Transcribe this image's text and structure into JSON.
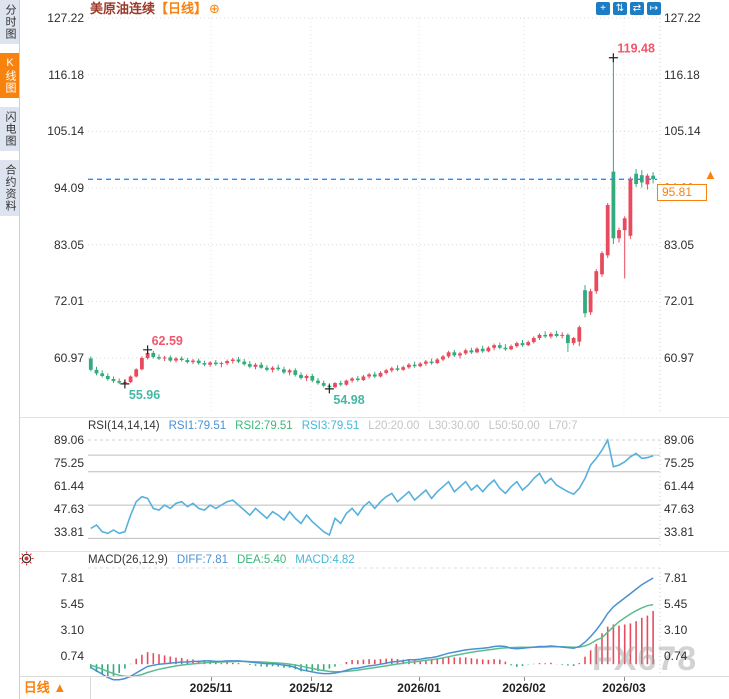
{
  "colors": {
    "accent_orange": "#f7820d",
    "up_red": "#e74c5e",
    "down_green": "#33ab7c",
    "label_red": "#f2566b",
    "label_green": "#45b8a4",
    "rsi_line": "#57b0dc",
    "dif_blue": "#4a90d2",
    "dea_green": "#5bbd8e",
    "macd_cyan": "#45b8d8",
    "level_gray": "#c5c5c5",
    "toolbar_blue": "#1d7dc4",
    "title_red": "#9c3a2a",
    "current_line_blue": "#1e90ff"
  },
  "sidebar": {
    "tabs": [
      {
        "label": "分时图",
        "active": false
      },
      {
        "label": "K线图",
        "active": true
      },
      {
        "label": "闪电图",
        "active": false
      },
      {
        "label": "合约资料",
        "active": false
      }
    ]
  },
  "header": {
    "symbol": "美原油连续",
    "period": "【日线】",
    "add_icon": "⊕"
  },
  "toolbar": {
    "icons": [
      {
        "name": "crosshair-icon",
        "glyph": "+"
      },
      {
        "name": "fit-vertical-icon",
        "glyph": "⇅"
      },
      {
        "name": "scale-axis-icon",
        "glyph": "⇄"
      },
      {
        "name": "pop-out-icon",
        "glyph": "↦"
      }
    ]
  },
  "price_marker": {
    "value": "95.81",
    "arrow": "▲"
  },
  "bottom_bar": {
    "period_button": "日线",
    "period_arrow": "▲",
    "months": [
      "2025/11",
      "2025/12",
      "2026/01",
      "2026/02",
      "2026/03"
    ]
  },
  "watermark": "FX678",
  "rsi_header": {
    "segments": [
      {
        "text": "RSI(14,14,14)",
        "color": "#333333"
      },
      {
        "text": "RSI1:79.51",
        "color": "#4a90d2"
      },
      {
        "text": "RSI2:79.51",
        "color": "#3cb77b"
      },
      {
        "text": "RSI3:79.51",
        "color": "#45b8d8"
      },
      {
        "text": "L20:20.00",
        "color": "#c5c5c5"
      },
      {
        "text": "L30:30.00",
        "color": "#c5c5c5"
      },
      {
        "text": "L50:50.00",
        "color": "#c5c5c5"
      },
      {
        "text": "L70:7",
        "color": "#c5c5c5"
      }
    ]
  },
  "macd_header": {
    "segments": [
      {
        "text": "MACD(26,12,9)",
        "color": "#333333"
      },
      {
        "text": "DIFF:7.81",
        "color": "#4a90d2"
      },
      {
        "text": "DEA:5.40",
        "color": "#3cb77b"
      },
      {
        "text": "MACD:4.82",
        "color": "#45b8d8"
      }
    ]
  },
  "annotations": [
    {
      "text": "119.48",
      "index": 92,
      "at": "high",
      "color_key": "label_red"
    },
    {
      "text": "62.59",
      "index": 10,
      "at": "high",
      "color_key": "label_red"
    },
    {
      "text": "55.96",
      "index": 6,
      "at": "low",
      "color_key": "label_green"
    },
    {
      "text": "54.98",
      "index": 42,
      "at": "low",
      "color_key": "label_green"
    }
  ],
  "chart_data": [
    {
      "type": "candlestick",
      "title": "美原油连续 日线",
      "ylim": [
        50.5,
        127.22
      ],
      "yticks": [
        "127.22",
        "116.18",
        "105.14",
        "94.09",
        "83.05",
        "72.01",
        "60.97"
      ],
      "current_price": 95.81,
      "high_marker": 119.48,
      "low_marker": 54.98,
      "candles": [
        [
          60.9,
          61.3,
          58.4,
          58.7
        ],
        [
          58.7,
          59.3,
          57.6,
          58.0
        ],
        [
          58.0,
          58.6,
          57.2,
          57.5
        ],
        [
          57.5,
          58.0,
          56.6,
          56.9
        ],
        [
          56.9,
          57.4,
          56.1,
          56.5
        ],
        [
          56.5,
          57.0,
          55.9,
          56.2
        ],
        [
          56.2,
          56.6,
          55.96,
          56.3
        ],
        [
          56.3,
          57.6,
          56.1,
          57.4
        ],
        [
          57.4,
          59.0,
          57.2,
          58.8
        ],
        [
          58.8,
          61.3,
          58.6,
          61.0
        ],
        [
          61.0,
          62.59,
          60.7,
          62.0
        ],
        [
          62.0,
          62.4,
          60.9,
          61.2
        ],
        [
          61.2,
          61.7,
          60.6,
          60.9
        ],
        [
          60.9,
          61.4,
          60.4,
          61.1
        ],
        [
          61.1,
          61.5,
          60.2,
          60.5
        ],
        [
          60.5,
          61.2,
          60.1,
          60.9
        ],
        [
          60.9,
          61.3,
          60.3,
          60.6
        ],
        [
          60.6,
          61.0,
          59.9,
          60.2
        ],
        [
          60.2,
          60.8,
          59.8,
          60.5
        ],
        [
          60.5,
          60.9,
          59.7,
          60.0
        ],
        [
          60.0,
          60.5,
          59.4,
          59.7
        ],
        [
          59.7,
          60.4,
          59.3,
          60.1
        ],
        [
          60.1,
          60.6,
          59.5,
          59.8
        ],
        [
          59.8,
          60.3,
          59.2,
          60.0
        ],
        [
          60.0,
          60.7,
          59.6,
          60.4
        ],
        [
          60.4,
          61.0,
          59.9,
          60.7
        ],
        [
          60.7,
          61.2,
          60.0,
          60.3
        ],
        [
          60.3,
          60.8,
          59.5,
          59.8
        ],
        [
          59.8,
          60.4,
          59.0,
          59.3
        ],
        [
          59.3,
          60.0,
          58.8,
          59.7
        ],
        [
          59.7,
          60.2,
          58.9,
          59.1
        ],
        [
          59.1,
          59.6,
          58.4,
          58.7
        ],
        [
          58.7,
          59.4,
          58.2,
          59.1
        ],
        [
          59.1,
          59.7,
          58.5,
          58.8
        ],
        [
          58.8,
          59.3,
          57.9,
          58.2
        ],
        [
          58.2,
          58.9,
          57.6,
          58.6
        ],
        [
          58.6,
          59.0,
          57.4,
          57.7
        ],
        [
          57.7,
          58.2,
          56.8,
          57.1
        ],
        [
          57.1,
          57.8,
          56.5,
          57.5
        ],
        [
          57.5,
          57.9,
          56.3,
          56.6
        ],
        [
          56.6,
          57.1,
          55.8,
          56.1
        ],
        [
          56.1,
          56.6,
          55.3,
          55.6
        ],
        [
          55.6,
          56.1,
          54.98,
          55.3
        ],
        [
          55.3,
          56.3,
          55.1,
          56.1
        ],
        [
          56.1,
          56.6,
          55.5,
          55.8
        ],
        [
          55.8,
          56.8,
          55.6,
          56.6
        ],
        [
          56.6,
          57.3,
          56.2,
          57.0
        ],
        [
          57.0,
          57.5,
          56.4,
          56.7
        ],
        [
          56.7,
          57.7,
          56.5,
          57.4
        ],
        [
          57.4,
          58.1,
          57.0,
          57.8
        ],
        [
          57.8,
          58.3,
          57.1,
          57.4
        ],
        [
          57.4,
          58.4,
          57.2,
          58.1
        ],
        [
          58.1,
          58.9,
          57.8,
          58.6
        ],
        [
          58.6,
          59.3,
          58.2,
          59.0
        ],
        [
          59.0,
          59.6,
          58.4,
          58.7
        ],
        [
          58.7,
          59.5,
          58.5,
          59.2
        ],
        [
          59.2,
          60.0,
          58.9,
          59.7
        ],
        [
          59.7,
          60.3,
          59.1,
          59.4
        ],
        [
          59.4,
          60.2,
          59.2,
          59.9
        ],
        [
          59.9,
          60.6,
          59.5,
          60.3
        ],
        [
          60.3,
          60.9,
          59.7,
          60.0
        ],
        [
          60.0,
          61.0,
          59.8,
          60.7
        ],
        [
          60.7,
          61.6,
          60.4,
          61.3
        ],
        [
          61.3,
          62.4,
          61.0,
          62.1
        ],
        [
          62.1,
          62.6,
          61.2,
          61.5
        ],
        [
          61.5,
          62.2,
          60.9,
          61.9
        ],
        [
          61.9,
          62.8,
          61.6,
          62.5
        ],
        [
          62.5,
          63.0,
          61.8,
          62.1
        ],
        [
          62.1,
          63.1,
          61.9,
          62.8
        ],
        [
          62.8,
          63.4,
          62.0,
          62.3
        ],
        [
          62.3,
          63.3,
          62.1,
          63.0
        ],
        [
          63.0,
          63.8,
          62.5,
          63.5
        ],
        [
          63.5,
          64.0,
          62.7,
          63.0
        ],
        [
          63.0,
          63.7,
          62.4,
          62.7
        ],
        [
          62.7,
          63.6,
          62.5,
          63.3
        ],
        [
          63.3,
          64.2,
          63.0,
          63.9
        ],
        [
          63.9,
          64.5,
          63.2,
          63.5
        ],
        [
          63.5,
          64.4,
          63.3,
          64.1
        ],
        [
          64.1,
          65.2,
          63.8,
          64.9
        ],
        [
          64.9,
          65.8,
          64.5,
          65.5
        ],
        [
          65.5,
          66.2,
          64.9,
          65.2
        ],
        [
          65.2,
          66.0,
          64.8,
          65.7
        ],
        [
          65.7,
          66.3,
          65.0,
          65.3
        ],
        [
          65.3,
          66.0,
          64.8,
          65.5
        ],
        [
          65.5,
          65.8,
          62.2,
          63.9
        ],
        [
          63.9,
          65.1,
          63.5,
          64.9
        ],
        [
          64.2,
          67.3,
          63.3,
          67.0
        ],
        [
          74.2,
          75.2,
          68.9,
          69.7
        ],
        [
          69.9,
          74.5,
          69.4,
          74.0
        ],
        [
          74.0,
          78.3,
          73.5,
          77.9
        ],
        [
          77.3,
          81.8,
          76.8,
          81.4
        ],
        [
          81.0,
          91.2,
          80.5,
          90.8
        ],
        [
          97.3,
          119.48,
          83.2,
          84.3
        ],
        [
          84.3,
          86.4,
          83.5,
          85.9
        ],
        [
          85.9,
          88.6,
          76.5,
          88.2
        ],
        [
          84.8,
          96.3,
          84.2,
          95.9
        ],
        [
          96.9,
          97.8,
          94.3,
          94.9
        ],
        [
          96.6,
          97.6,
          94.2,
          95.2
        ],
        [
          94.8,
          96.9,
          93.8,
          96.5
        ],
        [
          96.5,
          97.2,
          95.0,
          95.81
        ]
      ]
    },
    {
      "type": "line",
      "name": "RSI(14,14,14)",
      "yticks": [
        "89.06",
        "75.25",
        "61.44",
        "47.63",
        "33.81"
      ],
      "levels": [
        80,
        70,
        50,
        30
      ],
      "values": [
        36,
        38,
        34,
        33,
        35,
        33,
        34,
        44,
        52,
        55,
        54,
        48,
        47,
        50,
        48,
        51,
        52,
        49,
        51,
        48,
        47,
        50,
        48,
        50,
        52,
        53,
        50,
        47,
        44,
        48,
        45,
        42,
        46,
        44,
        41,
        46,
        42,
        39,
        44,
        40,
        37,
        34,
        32,
        42,
        39,
        45,
        48,
        44,
        49,
        52,
        48,
        52,
        55,
        57,
        52,
        55,
        58,
        53,
        56,
        59,
        54,
        58,
        61,
        64,
        58,
        61,
        64,
        59,
        62,
        58,
        62,
        65,
        60,
        57,
        61,
        64,
        59,
        62,
        66,
        69,
        63,
        66,
        62,
        60,
        58,
        56.5,
        60,
        66,
        74,
        78,
        83,
        89,
        73,
        74,
        76,
        79,
        81,
        78,
        78.5,
        79.5
      ]
    },
    {
      "type": "macd",
      "name": "MACD(26,12,9)",
      "yticks": [
        "7.81",
        "5.45",
        "3.10",
        "0.74"
      ],
      "hist_formula": "2*(dif-dea)",
      "dif": [
        -0.3,
        -0.6,
        -0.9,
        -1.2,
        -1.4,
        -1.4,
        -1.3,
        -1.1,
        -0.8,
        -0.5,
        -0.2,
        -0.1,
        0.0,
        0.05,
        0.1,
        0.15,
        0.2,
        0.2,
        0.25,
        0.25,
        0.3,
        0.3,
        0.25,
        0.25,
        0.3,
        0.3,
        0.3,
        0.25,
        0.2,
        0.15,
        0.1,
        0.05,
        0.05,
        0.0,
        -0.1,
        -0.15,
        -0.3,
        -0.5,
        -0.6,
        -0.7,
        -0.8,
        -0.85,
        -0.85,
        -0.8,
        -0.7,
        -0.55,
        -0.4,
        -0.35,
        -0.25,
        -0.15,
        -0.1,
        0.0,
        0.1,
        0.2,
        0.25,
        0.3,
        0.4,
        0.4,
        0.45,
        0.55,
        0.6,
        0.7,
        0.85,
        1.0,
        1.1,
        1.2,
        1.3,
        1.35,
        1.4,
        1.45,
        1.5,
        1.6,
        1.65,
        1.6,
        1.45,
        1.4,
        1.45,
        1.5,
        1.55,
        1.6,
        1.6,
        1.65,
        1.6,
        1.55,
        1.5,
        1.45,
        1.6,
        2.0,
        2.5,
        3.1,
        3.8,
        4.6,
        5.2,
        5.6,
        6.0,
        6.4,
        6.8,
        7.2,
        7.5,
        7.81
      ],
      "dea": [
        -0.1,
        -0.25,
        -0.45,
        -0.65,
        -0.85,
        -1.0,
        -1.1,
        -1.12,
        -1.05,
        -0.93,
        -0.75,
        -0.6,
        -0.45,
        -0.35,
        -0.25,
        -0.15,
        -0.08,
        -0.02,
        0.03,
        0.08,
        0.12,
        0.16,
        0.18,
        0.2,
        0.22,
        0.24,
        0.25,
        0.25,
        0.24,
        0.22,
        0.2,
        0.17,
        0.14,
        0.11,
        0.06,
        0.01,
        -0.07,
        -0.18,
        -0.28,
        -0.39,
        -0.49,
        -0.58,
        -0.65,
        -0.69,
        -0.69,
        -0.65,
        -0.59,
        -0.53,
        -0.46,
        -0.38,
        -0.31,
        -0.23,
        -0.15,
        -0.06,
        0.02,
        0.09,
        0.17,
        0.23,
        0.28,
        0.35,
        0.41,
        0.48,
        0.57,
        0.68,
        0.79,
        0.89,
        0.99,
        1.08,
        1.16,
        1.23,
        1.3,
        1.37,
        1.44,
        1.48,
        1.5,
        1.52,
        1.53,
        1.52,
        1.53,
        1.55,
        1.56,
        1.58,
        1.59,
        1.58,
        1.56,
        1.53,
        1.55,
        1.66,
        1.87,
        2.18,
        2.4,
        2.9,
        3.4,
        3.85,
        4.2,
        4.55,
        4.85,
        5.1,
        5.3,
        5.4
      ]
    }
  ]
}
